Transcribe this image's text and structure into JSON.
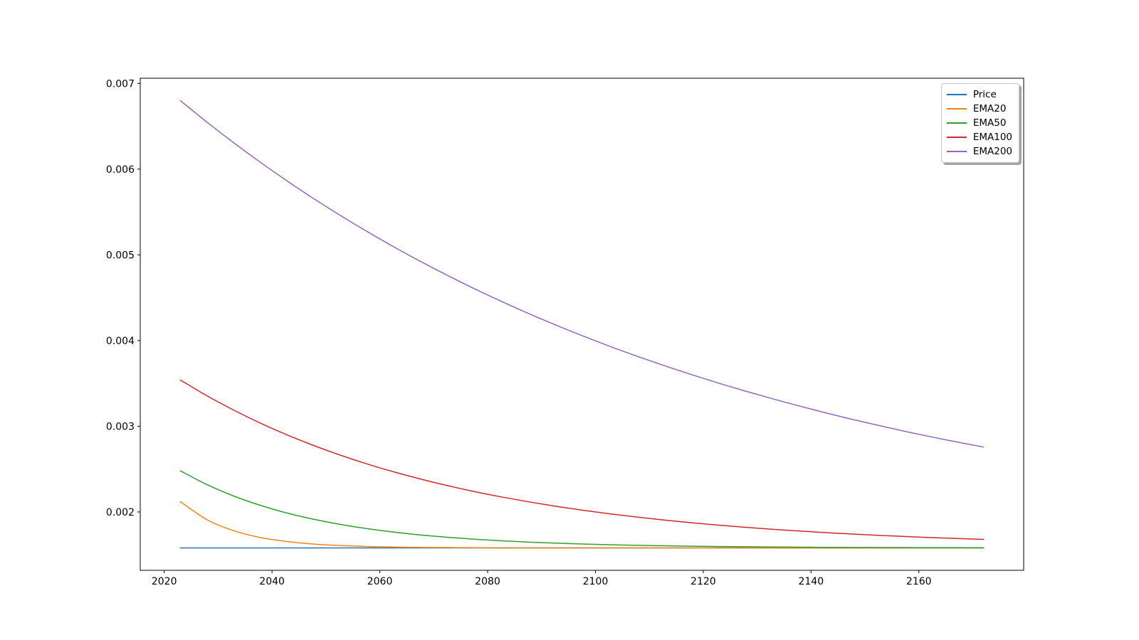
{
  "chart_data": {
    "type": "line",
    "title": "",
    "xlabel": "",
    "ylabel": "",
    "grid": false,
    "background": "#ffffff",
    "spine_color": "#000000",
    "tick_label_color": "#000000",
    "line_width": 1.5,
    "xlim": [
      2015.55,
      2179.45
    ],
    "ylim": [
      0.001319,
      0.007061
    ],
    "xticks": [
      2020,
      2040,
      2060,
      2080,
      2100,
      2120,
      2140,
      2160
    ],
    "yticks": [
      0.002,
      0.003,
      0.004,
      0.005,
      0.006,
      0.007
    ],
    "ytick_decimals": 3,
    "x": [
      2023,
      2028,
      2033,
      2038,
      2043,
      2048,
      2053,
      2058,
      2063,
      2068,
      2073,
      2078,
      2083,
      2088,
      2093,
      2098,
      2103,
      2108,
      2113,
      2118,
      2123,
      2128,
      2133,
      2138,
      2143,
      2148,
      2153,
      2158,
      2163,
      2168,
      2172
    ],
    "series": [
      {
        "name": "Price",
        "color": "#1f77b4",
        "values": [
          0.00158,
          0.00158,
          0.00158,
          0.00158,
          0.00158,
          0.00158,
          0.00158,
          0.00158,
          0.00158,
          0.00158,
          0.00158,
          0.00158,
          0.00158,
          0.00158,
          0.00158,
          0.00158,
          0.00158,
          0.00158,
          0.00158,
          0.00158,
          0.00158,
          0.00158,
          0.00158,
          0.00158,
          0.00158,
          0.00158,
          0.00158,
          0.00158,
          0.00158,
          0.00158,
          0.00158
        ]
      },
      {
        "name": "EMA20",
        "color": "#ff7f0e",
        "values": [
          0.00212,
          0.001907,
          0.001779,
          0.0017,
          0.001653,
          0.001624,
          0.001607,
          0.001596,
          0.00159,
          0.001586,
          0.001584,
          0.001582,
          0.001581,
          0.001581,
          0.001581,
          0.00158,
          0.00158,
          0.00158,
          0.00158,
          0.00158,
          0.00158,
          0.00158,
          0.00158,
          0.00158,
          0.00158,
          0.00158,
          0.00158,
          0.00158,
          0.00158,
          0.00158,
          0.00158
        ]
      },
      {
        "name": "EMA50",
        "color": "#2ca02c",
        "values": [
          0.00248,
          0.002317,
          0.002183,
          0.002074,
          0.001984,
          0.001911,
          0.001851,
          0.001802,
          0.001762,
          0.001729,
          0.001702,
          0.00168,
          0.001662,
          0.001647,
          0.001635,
          0.001625,
          0.001617,
          0.00161,
          0.001605,
          0.0016,
          0.001596,
          0.001594,
          0.001591,
          0.001589,
          0.001587,
          0.001586,
          0.001585,
          0.001584,
          0.001583,
          0.001583,
          0.001582
        ]
      },
      {
        "name": "EMA100",
        "color": "#d62728",
        "values": [
          0.00354,
          0.003353,
          0.003185,
          0.003032,
          0.002894,
          0.002769,
          0.002656,
          0.002553,
          0.002461,
          0.002377,
          0.002301,
          0.002232,
          0.00217,
          0.002114,
          0.002063,
          0.002017,
          0.001976,
          0.001938,
          0.001904,
          0.001873,
          0.001845,
          0.00182,
          0.001797,
          0.001777,
          0.001758,
          0.001741,
          0.001726,
          0.001712,
          0.001699,
          0.001688,
          0.00168
        ]
      },
      {
        "name": "EMA200",
        "color": "#9467bd",
        "values": [
          0.0068,
          0.006545,
          0.006303,
          0.006073,
          0.005854,
          0.005645,
          0.005447,
          0.005259,
          0.005079,
          0.004908,
          0.004746,
          0.004591,
          0.004445,
          0.004305,
          0.004172,
          0.004046,
          0.003925,
          0.003811,
          0.003702,
          0.003599,
          0.0035,
          0.003407,
          0.003318,
          0.003233,
          0.003152,
          0.003075,
          0.003003,
          0.002933,
          0.002867,
          0.002805,
          0.002757
        ]
      }
    ],
    "legend": {
      "position": "upper right",
      "entries": [
        "Price",
        "EMA20",
        "EMA50",
        "EMA100",
        "EMA200"
      ]
    }
  }
}
